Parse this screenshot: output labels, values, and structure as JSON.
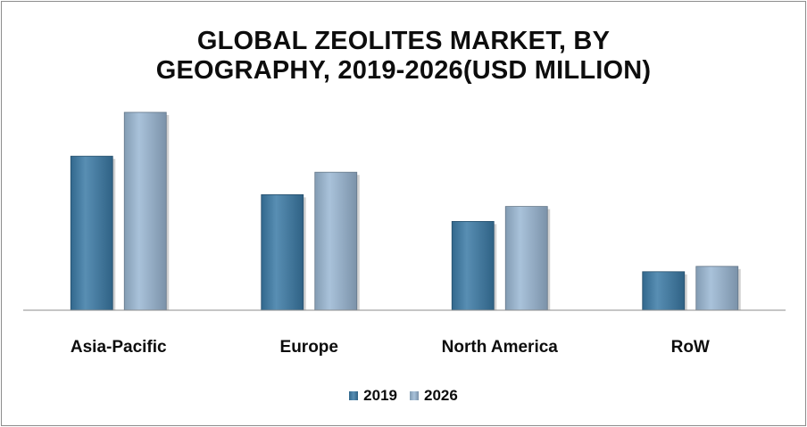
{
  "chart_data": {
    "type": "bar",
    "title_lines": [
      "GLOBAL ZEOLITES MARKET, BY",
      "GEOGRAPHY, 2019-2026(USD MILLION)"
    ],
    "categories": [
      "Asia-Pacific",
      "Europe",
      "North America",
      "RoW"
    ],
    "series": [
      {
        "name": "2019",
        "values": [
          144,
          108,
          83,
          36
        ],
        "color": "#3b7aa6"
      },
      {
        "name": "2026",
        "values": [
          185,
          129,
          97,
          41
        ],
        "color": "#9ab7d3"
      }
    ],
    "ylim": [
      0,
      200
    ],
    "grid": false,
    "legend_position": "bottom",
    "axis_color": "#8c8c8c"
  }
}
